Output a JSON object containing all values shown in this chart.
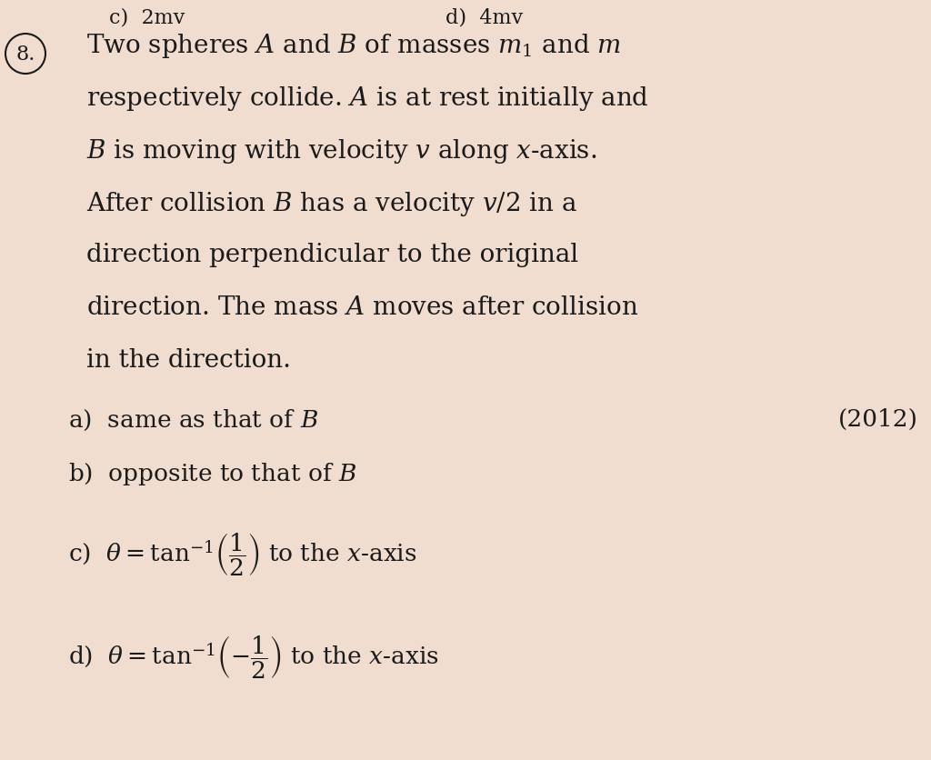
{
  "bg_color": "#f0ddd0",
  "text_color": "#1a1a1a",
  "figsize": [
    10.24,
    8.37
  ],
  "dpi": 100,
  "top_left_text": "c)  2mv",
  "top_right_text": "d)  4mv",
  "question_number": "8.",
  "year_tag": "(2012)"
}
